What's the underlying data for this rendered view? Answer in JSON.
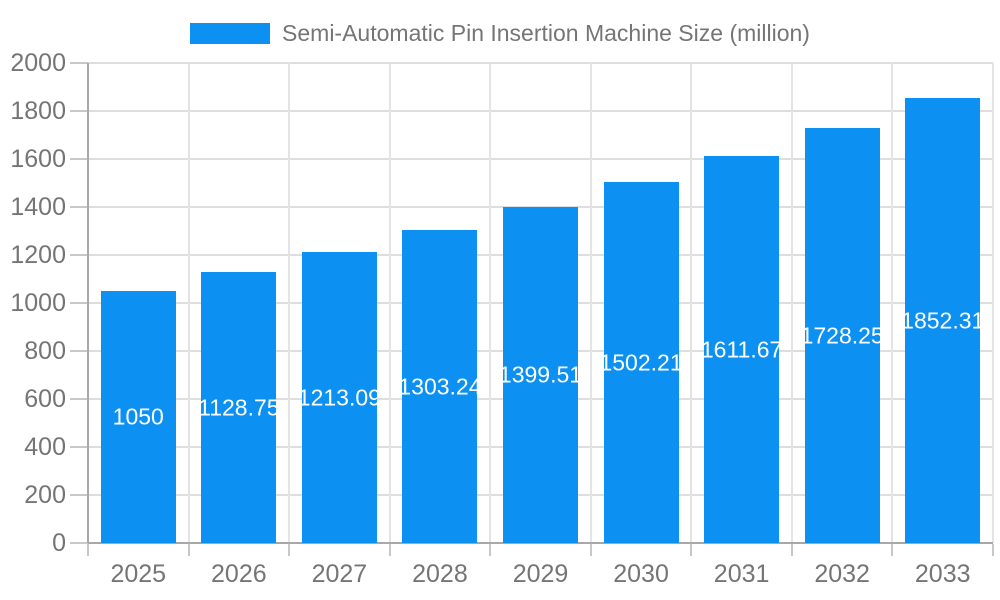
{
  "legend": {
    "label": "Semi-Automatic Pin Insertion Machine Size (million)"
  },
  "colors": {
    "bar": "#0C90F2",
    "axis_label": "#757575",
    "bar_label": "#ffffff",
    "grid_h": "#dedede",
    "grid_v": "#e4e4e4",
    "axis": "#a8a8a8",
    "tick": "#c8c8c8",
    "background": "#ffffff"
  },
  "chart_data": {
    "type": "bar",
    "title": "Semi-Automatic Pin Insertion Machine Size (million)",
    "xlabel": "",
    "ylabel": "",
    "categories": [
      "2025",
      "2026",
      "2027",
      "2028",
      "2029",
      "2030",
      "2031",
      "2032",
      "2033"
    ],
    "series": [
      {
        "name": "Semi-Automatic Pin Insertion Machine Size (million)",
        "values": [
          1050,
          1128.75,
          1213.09,
          1303.24,
          1399.51,
          1502.21,
          1611.67,
          1728.25,
          1852.31
        ],
        "value_labels": [
          "1050",
          "1128.75",
          "1213.09",
          "1303.24",
          "1399.51",
          "1502.21",
          "1611.67",
          "1728.25",
          "1852.31"
        ]
      }
    ],
    "ylim": [
      0,
      2000
    ],
    "ytick_step": 200,
    "ytick_labels": [
      "0",
      "200",
      "400",
      "600",
      "800",
      "1000",
      "1200",
      "1400",
      "1600",
      "1800",
      "2000"
    ],
    "grid": true,
    "legend_position": "top-center",
    "bar_label_position": "inside-center"
  }
}
